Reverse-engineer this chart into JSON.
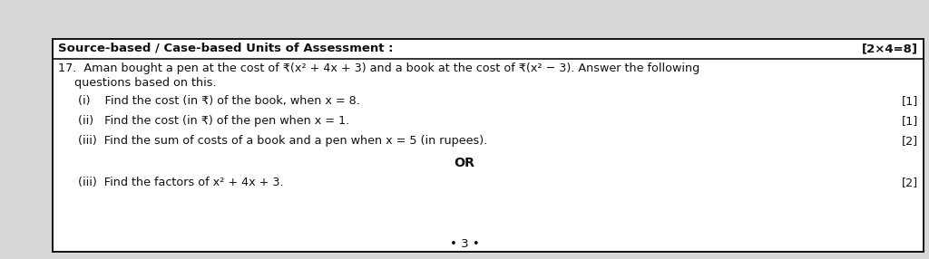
{
  "title_left": "Source-based / Case-based Units of Assessment :",
  "title_right": "[2×4=8]",
  "line1": "17.  Aman bought a pen at the cost of ₹(x² + 4x + 3) and a book at the cost of ₹(x² − 3). Answer the following",
  "line2": "      questions based on this.",
  "pi_text": "(i)    Find the cost (in ₹) of the book, when x = 8.",
  "pi_mark": "[1]",
  "pii_text": "(ii)   Find the cost (in ₹) of the pen when x = 1.",
  "pii_mark": "[1]",
  "piii_text": "(iii)  Find the sum of costs of a book and a pen when x = 5 (in rupees).",
  "piii_mark": "[2]",
  "or_text": "OR",
  "palt_text": "(iii)  Find the factors of x² + 4x + 3.",
  "palt_mark": "[2]",
  "footer": "• 3 •",
  "bg_color": "#d8d8d8",
  "box_bg": "#ffffff",
  "border_color": "#111111",
  "text_color": "#111111",
  "title_fontsize": 9.5,
  "body_fontsize": 9.2,
  "footer_fontsize": 9.5
}
